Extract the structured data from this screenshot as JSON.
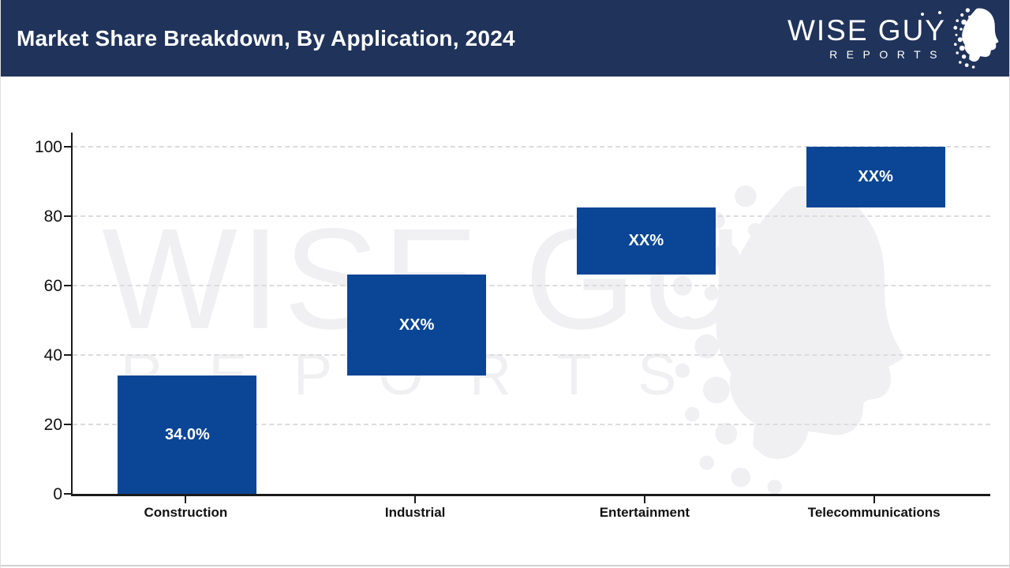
{
  "header": {
    "title": "Market Share Breakdown, By Application, 2024",
    "logo": {
      "line1": "WISE GUY",
      "line2": "REPORTS"
    }
  },
  "watermark": {
    "line1": "WISE GUY",
    "line2": "REPORTS"
  },
  "colors": {
    "header_bg": "#20335b",
    "bar": "#0b4696",
    "axis": "#1a1a1a",
    "grid": "#dcdcdc",
    "text": "#111111",
    "bar_label": "#ffffff",
    "watermark": "#f0f0f2"
  },
  "chart_data": {
    "type": "bar",
    "subtype": "waterfall",
    "title": "Market Share Breakdown, By Application, 2024",
    "categories": [
      "Construction",
      "Industrial",
      "Entertainment",
      "Telecommunications"
    ],
    "segments": [
      {
        "category": "Construction",
        "start": 0,
        "end": 34,
        "value": 34.0,
        "label": "34.0%"
      },
      {
        "category": "Industrial",
        "start": 34,
        "end": 63.2,
        "value": 29.2,
        "label": "XX%"
      },
      {
        "category": "Entertainment",
        "start": 63.2,
        "end": 82.6,
        "value": 19.4,
        "label": "XX%"
      },
      {
        "category": "Telecommunications",
        "start": 82.6,
        "end": 100,
        "value": 17.4,
        "label": "XX%"
      }
    ],
    "ylim": [
      0,
      100
    ],
    "yticks": [
      0,
      20,
      40,
      60,
      80,
      100
    ],
    "grid": "dashed-horizontal",
    "legend": "none",
    "bar_color": "#0b4696",
    "label_color": "#ffffff"
  }
}
